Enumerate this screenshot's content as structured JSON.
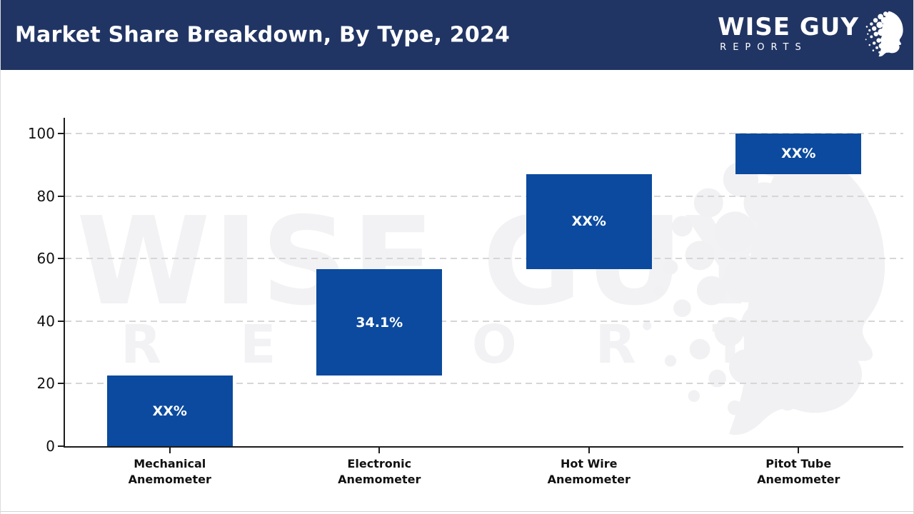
{
  "header": {
    "title": "Market Share Breakdown, By Type, 2024",
    "logo": {
      "line1": "WISE GUY",
      "line2": "REPORTS"
    }
  },
  "watermark": {
    "line1": "WISE GUY",
    "line2": "REPORTS"
  },
  "colors": {
    "header_bg": "#213564",
    "title_text": "#ffffff",
    "bar": "#0B4A9E",
    "bar_label": "#ffffff",
    "grid": "#d6d6d6",
    "axis": "#1c1c1c",
    "watermark": "#f2f2f4",
    "border": "#dcdcdc"
  },
  "chart_data": {
    "type": "bar",
    "subtype": "waterfall",
    "title": "Market Share Breakdown, By Type, 2024",
    "categories": [
      "Mechanical Anemometer",
      "Electronic Anemometer",
      "Hot Wire Anemometer",
      "Pitot Tube Anemometer"
    ],
    "category_lines": [
      [
        "Mechanical",
        "Anemometer"
      ],
      [
        "Electronic",
        "Anemometer"
      ],
      [
        "Hot Wire",
        "Anemometer"
      ],
      [
        "Pitot Tube",
        "Anemometer"
      ]
    ],
    "segments": [
      {
        "category": "Mechanical Anemometer",
        "start": 0,
        "end": 22.5,
        "label": "XX%"
      },
      {
        "category": "Electronic Anemometer",
        "start": 22.5,
        "end": 56.6,
        "label": "34.1%"
      },
      {
        "category": "Hot Wire Anemometer",
        "start": 56.6,
        "end": 87.0,
        "label": "XX%"
      },
      {
        "category": "Pitot Tube Anemometer",
        "start": 87.0,
        "end": 100.0,
        "label": "XX%"
      }
    ],
    "yticks": [
      0,
      20,
      40,
      60,
      80,
      100
    ],
    "ylim": [
      0,
      105
    ],
    "xlabel": "",
    "ylabel": "",
    "grid": "horizontal-dashed",
    "legend": "none",
    "bar_color": "#0B4A9E"
  }
}
